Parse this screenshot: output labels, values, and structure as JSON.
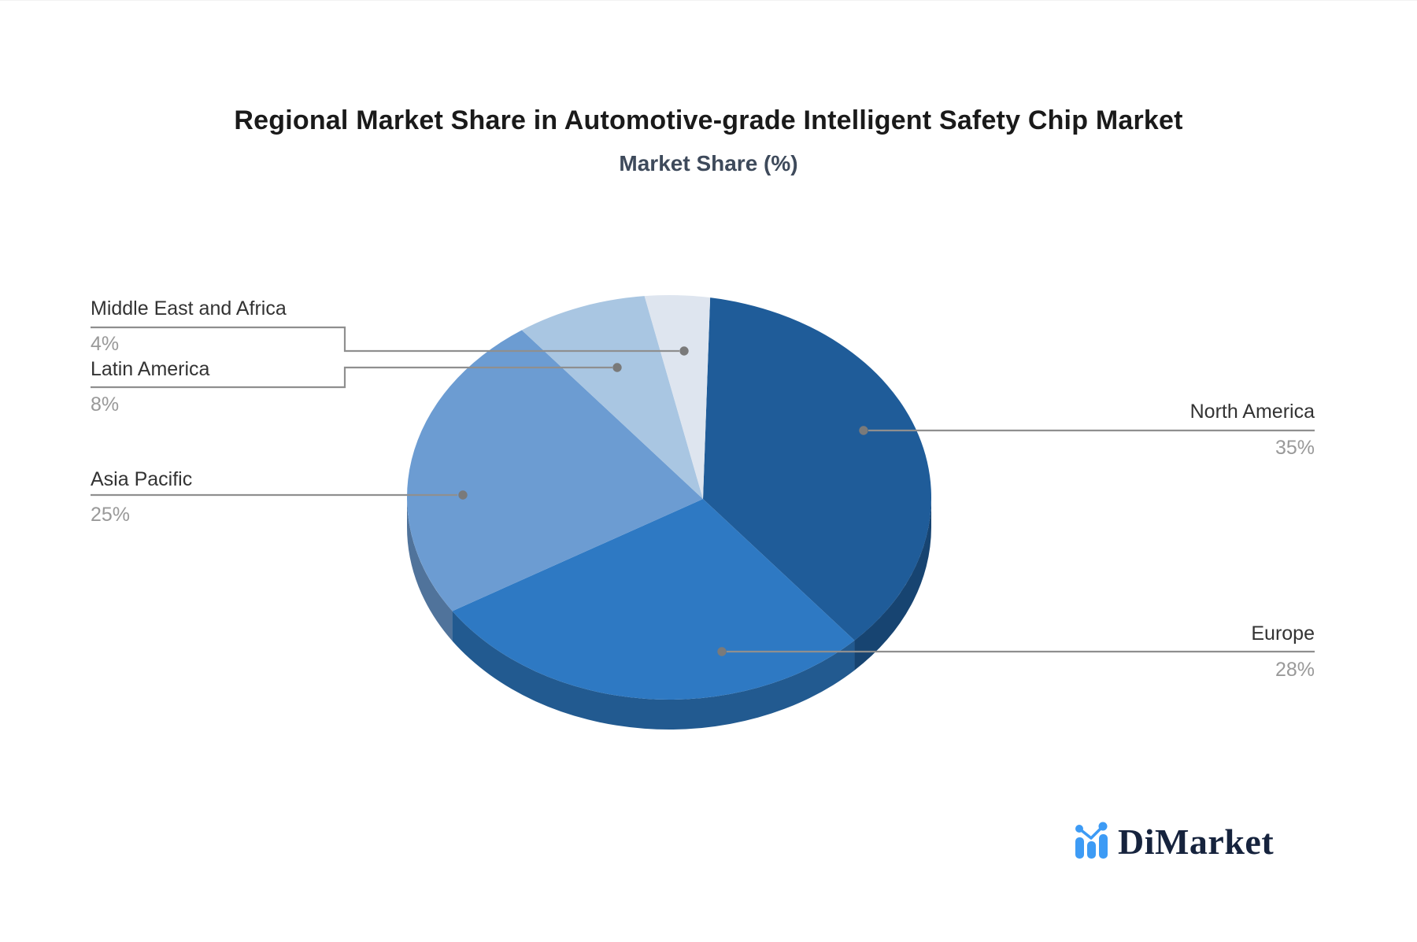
{
  "chart_data": {
    "type": "pie",
    "style": "3d",
    "title": "Regional Market Share in Automotive-grade Intelligent Safety Chip Market",
    "subtitle": "Market Share (%)",
    "unit": "%",
    "direction": "clockwise",
    "start_angle_deg": 9,
    "legend_position": "callout-labels",
    "slices": [
      {
        "label": "North America",
        "value": 35,
        "pct_label": "35%",
        "color": "#1F5C99"
      },
      {
        "label": "Europe",
        "value": 28,
        "pct_label": "28%",
        "color": "#2E79C3"
      },
      {
        "label": "Asia Pacific",
        "value": 25,
        "pct_label": "25%",
        "color": "#6C9CD2"
      },
      {
        "label": "Latin America",
        "value": 8,
        "pct_label": "8%",
        "color": "#A9C6E2"
      },
      {
        "label": "Middle East and Africa",
        "value": 4,
        "pct_label": "4%",
        "color": "#DEE5EF"
      }
    ]
  },
  "colors": {
    "title": "#1a1a1a",
    "subtitle": "#3e4a5b",
    "label_name": "#333333",
    "label_value": "#999999",
    "leader_line": "#8F8F8F",
    "logo_icon": "#3D9BF5",
    "logo_text": "#16233d"
  },
  "logo": {
    "text": "DiMarket",
    "icon": "bar-chart-logo-icon"
  }
}
